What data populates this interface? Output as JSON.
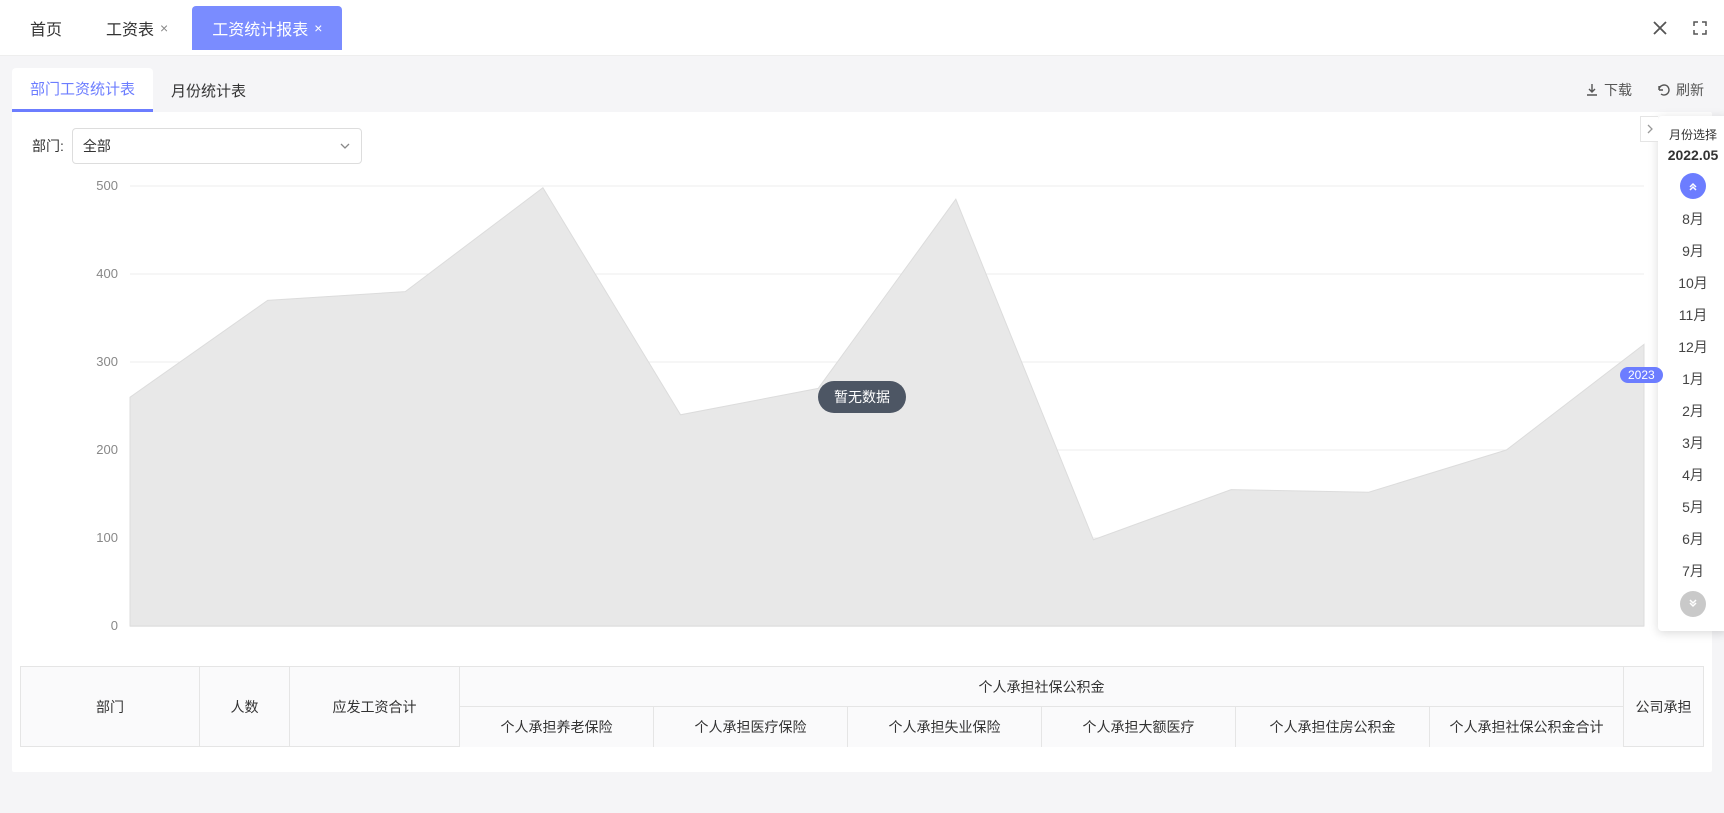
{
  "tabs": {
    "home": "首页",
    "salary": "工资表",
    "report": "工资统计报表"
  },
  "sub_tabs": {
    "dept": "部门工资统计表",
    "month": "月份统计表"
  },
  "toolbar": {
    "download": "下载",
    "refresh": "刷新"
  },
  "filter": {
    "dept_label": "部门:",
    "dept_value": "全部"
  },
  "chart": {
    "type": "area",
    "fill_color": "#e8e8e8",
    "stroke_color": "#dcdcdc",
    "grid_color": "#eeeeee",
    "axis_color": "#cccccc",
    "label_color": "#888888",
    "background_color": "#ffffff",
    "label_fontsize": 13,
    "ylim": [
      0,
      500
    ],
    "ytick_step": 100,
    "y_ticks": [
      0,
      100,
      200,
      300,
      400,
      500
    ],
    "points": [
      260,
      370,
      380,
      498,
      240,
      270,
      485,
      98,
      155,
      152,
      200,
      320
    ],
    "tooltip_text": "暂无数据",
    "tooltip_bg": "#4d5664",
    "tooltip_color": "#ffffff"
  },
  "table": {
    "col_dept": "部门",
    "col_count": "人数",
    "col_payable": "应发工资合计",
    "group_personal": "个人承担社保公积金",
    "sub_cols": [
      "个人承担养老保险",
      "个人承担医疗保险",
      "个人承担失业保险",
      "个人承担大额医疗",
      "个人承担住房公积金",
      "个人承担社保公积金合计"
    ],
    "col_company_cut": "公司承担"
  },
  "month_picker": {
    "title": "月份选择",
    "selected": "2022.05",
    "year_badge": "2023",
    "months": [
      "8月",
      "9月",
      "10月",
      "11月",
      "12月",
      "1月",
      "2月",
      "3月",
      "4月",
      "5月",
      "6月",
      "7月"
    ]
  },
  "colors": {
    "accent": "#6c7dff",
    "tab_active_bg": "#7a8cff"
  }
}
